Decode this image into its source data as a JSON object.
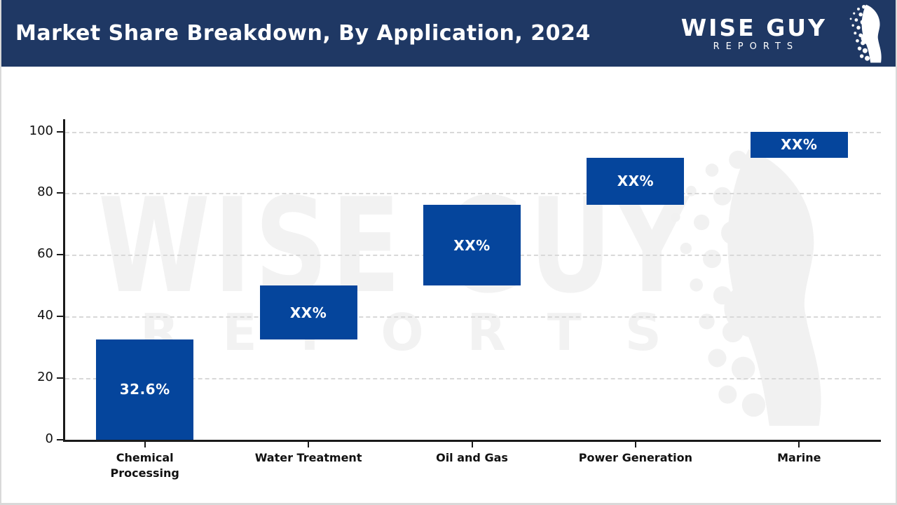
{
  "header": {
    "title": "Market Share Breakdown, By Application, 2024",
    "bg_color": "#1F3864",
    "logo_line1": "WISE GUY",
    "logo_line2": "REPORTS"
  },
  "watermark": {
    "line1": "WISE GUY",
    "line2": "REPORTS"
  },
  "chart_data": {
    "type": "bar",
    "subtype": "waterfall",
    "title": "Market Share Breakdown, By Application, 2024",
    "categories": [
      "Chemical Processing",
      "Water Treatment",
      "Oil and Gas",
      "Power Generation",
      "Marine"
    ],
    "tick_labels": [
      "Chemical\nProcessing",
      "Water Treatment",
      "Oil and Gas",
      "Power Generation",
      "Marine"
    ],
    "segments": [
      {
        "category": "Chemical Processing",
        "start": 0,
        "end": 32.6,
        "label": "32.6%"
      },
      {
        "category": "Water Treatment",
        "start": 32.6,
        "end": 50,
        "label": "XX%"
      },
      {
        "category": "Oil and Gas",
        "start": 50,
        "end": 76.3,
        "label": "XX%"
      },
      {
        "category": "Power Generation",
        "start": 76.3,
        "end": 91.5,
        "label": "XX%"
      },
      {
        "category": "Marine",
        "start": 91.5,
        "end": 100,
        "label": "XX%"
      }
    ],
    "ylim": [
      0,
      104
    ],
    "yticks": [
      0,
      20,
      40,
      60,
      80,
      100
    ],
    "bar_color": "#05459C",
    "axis_color": "#1a1a1a",
    "grid": "horizontal dashed",
    "legend": "none"
  }
}
